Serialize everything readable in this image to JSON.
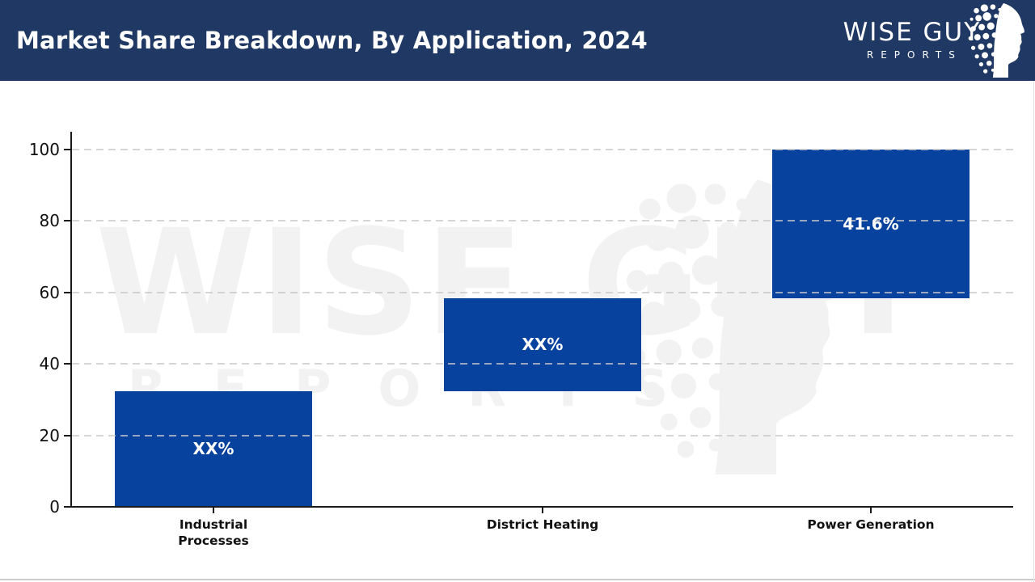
{
  "header": {
    "title": "Market Share Breakdown, By Application, 2024",
    "logo": {
      "main": "WISE GUY",
      "sub": "REPORTS"
    }
  },
  "watermark": {
    "line1": "WISE GUY",
    "line2": "REPORTS"
  },
  "colors": {
    "header_bg": "#203864",
    "bar": "#07429e",
    "bar_label": "#ffffff",
    "axis": "#1a1a1a",
    "grid": "rgba(200,200,200,0.75)",
    "tick_text": "#111111",
    "watermark": "#f2f2f2",
    "frame_line": "#cccccc"
  },
  "chart_data": {
    "type": "bar",
    "subtype": "waterfall",
    "title": "Market Share Breakdown, By Application, 2024",
    "xlabel": "",
    "ylabel": "",
    "categories": [
      "Industrial Processes",
      "District Heating",
      "Power Generation"
    ],
    "category_display_lines": [
      [
        "Industrial",
        "Processes"
      ],
      [
        "District Heating"
      ],
      [
        "Power Generation"
      ]
    ],
    "segments": [
      {
        "label": "Industrial Processes",
        "start": 0,
        "end": 32.4,
        "value": 32.4,
        "value_label": "XX%"
      },
      {
        "label": "District Heating",
        "start": 32.4,
        "end": 58.4,
        "value": 26.0,
        "value_label": "XX%"
      },
      {
        "label": "Power Generation",
        "start": 58.4,
        "end": 100,
        "value": 41.6,
        "value_label": "41.6%"
      }
    ],
    "ylim": [
      0,
      100
    ],
    "yticks": [
      0,
      20,
      40,
      60,
      80,
      100
    ],
    "grid": "horizontal-dashed",
    "legend": "none"
  }
}
